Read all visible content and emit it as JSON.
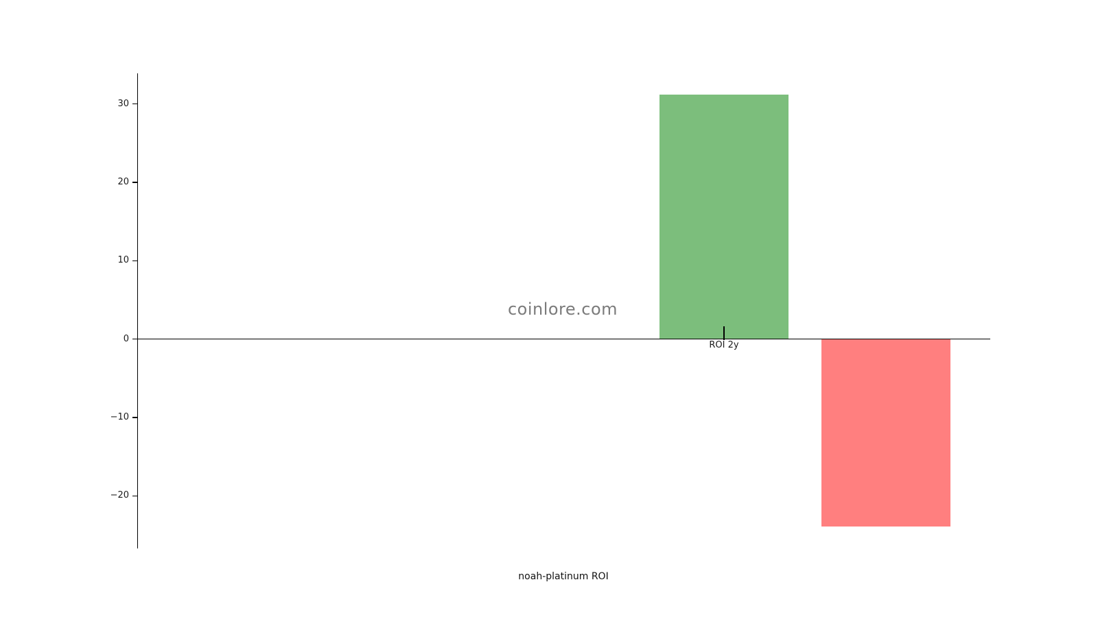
{
  "page": {
    "background": "#ffffff"
  },
  "watermark": {
    "text": "coinlore.com",
    "color": "#7b7b7b"
  },
  "chart_data": {
    "type": "bar",
    "title": "",
    "xlabel": "noah-platinum ROI",
    "ylabel": "",
    "categories": [
      "ROI 2y",
      ""
    ],
    "values": [
      31.2,
      -23.9
    ],
    "bar_colors": [
      "#7cbe7c",
      "#ff7f7f"
    ],
    "positive_color": "#7cbe7c",
    "negative_color": "#ff7f7f",
    "ylim": [
      -26.7,
      33.9
    ],
    "yticks": [
      30,
      20,
      10,
      0,
      -10,
      -20
    ],
    "ytick_labels": [
      "30",
      "20",
      "10",
      "0",
      "−10",
      "−20"
    ],
    "grid": false,
    "legend_position": "none",
    "axis_color": "#000000",
    "tick_label_color": "#1a1a1a"
  }
}
